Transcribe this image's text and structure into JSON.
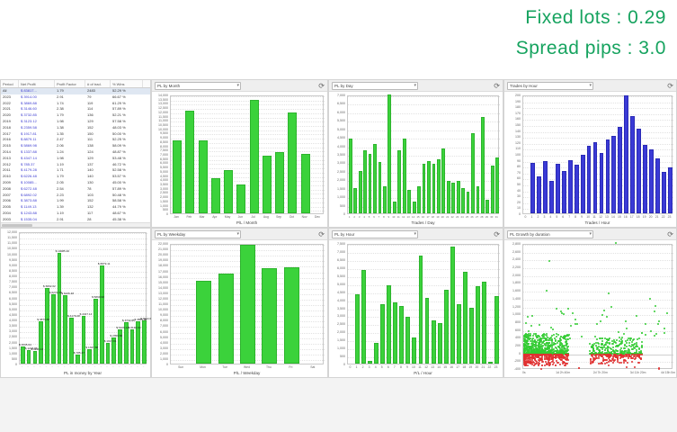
{
  "header": {
    "fixed_lots": "Fixed lots : 0.29",
    "spread_pips": "Spread pips : 3.0",
    "accent_color": "#16a35f"
  },
  "table": {
    "columns": [
      "Period",
      "Net Profit",
      "Profit Factor",
      "# of trad.",
      "% Wins"
    ],
    "rows": [
      [
        "All",
        "$ 83817...",
        "1.79",
        "2483",
        "52.29 %"
      ],
      [
        "2023",
        "$ 3914.00",
        "2.91",
        "79",
        "66.67 %"
      ],
      [
        "2022",
        "$ 3869.88",
        "1.74",
        "119",
        "61.29 %"
      ],
      [
        "2021",
        "$ 3146.60",
        "2.38",
        "114",
        "57.89 %"
      ],
      [
        "2020",
        "$ 3732.85",
        "1.79",
        "136",
        "52.21 %"
      ],
      [
        "2019",
        "$ 3123.12",
        "1.98",
        "129",
        "57.58 %"
      ],
      [
        "2018",
        "$ 2359.58",
        "1.38",
        "152",
        "48.03 %"
      ],
      [
        "2017",
        "$ 1917.81",
        "1.35",
        "150",
        "50.00 %"
      ],
      [
        "2016",
        "$ 8879.11",
        "2.47",
        "111",
        "52.25 %"
      ],
      [
        "2015",
        "$ 5869.98",
        "2.06",
        "138",
        "58.09 %"
      ],
      [
        "2014",
        "$ 1337.88",
        "1.24",
        "124",
        "48.87 %"
      ],
      [
        "2013",
        "$ 4347.14",
        "1.98",
        "129",
        "53.48 %"
      ],
      [
        "2012",
        "$ 785.37",
        "1.19",
        "137",
        "46.72 %"
      ],
      [
        "2011",
        "$ 4179.28",
        "1.71",
        "140",
        "52.58 %"
      ],
      [
        "2010",
        "$ 6226.48",
        "1.79",
        "140",
        "53.57 %"
      ],
      [
        "2009",
        "$ 10085...",
        "2.05",
        "130",
        "45.00 %"
      ],
      [
        "2008",
        "$ 6272.48",
        "2.54",
        "78",
        "57.89 %"
      ],
      [
        "2007",
        "$ 6892.02",
        "2.23",
        "103",
        "50.48 %"
      ],
      [
        "2006",
        "$ 3873.88",
        "1.99",
        "152",
        "58.58 %"
      ],
      [
        "2005",
        "$ 1149.13",
        "1.39",
        "132",
        "44.79 %"
      ],
      [
        "2004",
        "$ 1243.88",
        "1.19",
        "117",
        "48.67 %"
      ],
      [
        "2003",
        "$ 1535.04",
        "2.91",
        "28",
        "45.38 %"
      ]
    ]
  },
  "icons": {
    "refresh": "⟳",
    "chevron_down": "▾"
  },
  "colors": {
    "bar_green": "#3bd23b",
    "bar_green_border": "#2db42d",
    "bar_blue": "#3a3ad6",
    "bar_blue_border": "#2a2ab6",
    "scatter_win": "#33cc33",
    "scatter_loss": "#e03131"
  },
  "chart_data": [
    {
      "id": "pl_by_month",
      "type": "bar",
      "panel_label": "PL by Month",
      "xlabel": "P/L / Month",
      "categories": [
        "Jan",
        "Feb",
        "Mar",
        "Apr",
        "May",
        "Jun",
        "Jul",
        "Aug",
        "Sep",
        "Oct",
        "Nov",
        "Dec"
      ],
      "values": [
        8600,
        12100,
        8600,
        4150,
        5050,
        3450,
        13350,
        6750,
        7250,
        11850,
        7050,
        0
      ],
      "ylim": [
        0,
        14000
      ],
      "ytick": 500,
      "color": "green",
      "grid": true,
      "legend": "none"
    },
    {
      "id": "pl_by_day",
      "type": "bar",
      "panel_label": "PL by Day",
      "xlabel": "Trades / Day",
      "categories": [
        "1",
        "2",
        "3",
        "4",
        "5",
        "6",
        "7",
        "8",
        "9",
        "10",
        "11",
        "12",
        "13",
        "14",
        "15",
        "16",
        "17",
        "18",
        "19",
        "20",
        "21",
        "22",
        "23",
        "24",
        "25",
        "26",
        "27",
        "28",
        "29",
        "30",
        "31"
      ],
      "values": [
        4400,
        1500,
        2500,
        3700,
        3500,
        4100,
        3000,
        1600,
        7000,
        700,
        3700,
        4400,
        1400,
        700,
        1600,
        2900,
        3100,
        2900,
        3200,
        3800,
        1900,
        1800,
        1900,
        1500,
        1300,
        4700,
        1600,
        5700,
        800,
        2800,
        3300
      ],
      "ylim": [
        0,
        7000
      ],
      "ytick": 500,
      "color": "green",
      "grid": true,
      "legend": "none"
    },
    {
      "id": "trades_by_hour",
      "type": "bar",
      "panel_label": "Trades by Hour",
      "xlabel": "Trades / Hour",
      "categories": [
        "0",
        "1",
        "2",
        "3",
        "4",
        "5",
        "6",
        "7",
        "8",
        "9",
        "10",
        "11",
        "12",
        "13",
        "14",
        "15",
        "16",
        "17",
        "18",
        "19",
        "20",
        "21",
        "22",
        "23"
      ],
      "values": [
        0,
        85,
        62,
        88,
        55,
        84,
        72,
        90,
        82,
        98,
        113,
        120,
        102,
        125,
        130,
        145,
        198,
        163,
        142,
        115,
        108,
        93,
        70,
        78
      ],
      "ylim": [
        0,
        200
      ],
      "ytick": 10,
      "color": "blue",
      "grid": true,
      "legend": "none"
    },
    {
      "id": "pl_in_money_by_year",
      "type": "bar",
      "panel_label": "",
      "xlabel": "PL in money by Year",
      "categories": [
        "2003",
        "2004",
        "2005",
        "2006",
        "2007",
        "2008",
        "2009",
        "2010",
        "2011",
        "2012",
        "2013",
        "2014",
        "2015",
        "2016",
        "2017",
        "2018",
        "2019",
        "2020",
        "2021",
        "2022",
        "2023"
      ],
      "values": [
        1535.04,
        1243.88,
        1149.13,
        3873.88,
        6892.02,
        6272.48,
        10085.4,
        6226.48,
        4179.28,
        785.37,
        4347.14,
        1337.88,
        5869.98,
        8879.11,
        1917.81,
        2359.58,
        3123.12,
        3732.85,
        3146.6,
        3869.88,
        3914.0
      ],
      "ylim": [
        0,
        12000
      ],
      "ytick": 500,
      "color": "green",
      "grid": true,
      "legend": "none",
      "data_labels": true,
      "data_label_prefix": "$ ",
      "hide_cat_labels": true
    },
    {
      "id": "pl_by_weekday",
      "type": "bar",
      "panel_label": "PL by Weekday",
      "xlabel": "P/L / Weekday",
      "categories": [
        "Sun",
        "Mon",
        "Tue",
        "Wed",
        "Thu",
        "Fri",
        "Sat"
      ],
      "values": [
        0,
        15100,
        16400,
        21600,
        17400,
        17600,
        0
      ],
      "ylim": [
        0,
        22000
      ],
      "ytick": 1000,
      "color": "green",
      "grid": true,
      "legend": "none"
    },
    {
      "id": "pl_by_hour",
      "type": "bar",
      "panel_label": "PL by Hour",
      "xlabel": "P/L / Hour",
      "categories": [
        "0",
        "1",
        "2",
        "3",
        "4",
        "5",
        "6",
        "7",
        "8",
        "9",
        "10",
        "11",
        "12",
        "13",
        "14",
        "15",
        "16",
        "17",
        "18",
        "19",
        "20",
        "21",
        "22",
        "23"
      ],
      "values": [
        0,
        4300,
        5800,
        150,
        1300,
        3700,
        4900,
        3800,
        3600,
        2900,
        1600,
        6700,
        4100,
        2700,
        2500,
        4600,
        7300,
        3700,
        5700,
        3500,
        4800,
        5100,
        50,
        4200
      ],
      "ylim": [
        0,
        7500
      ],
      "ytick": 500,
      "color": "green",
      "grid": true,
      "legend": "none"
    },
    {
      "id": "pl_growth_by_duration",
      "type": "scatter",
      "panel_label": "PL Growth by duration",
      "xlabel": "",
      "ylim": [
        -400,
        2800
      ],
      "ytick": 200,
      "grid": true,
      "legend": "none",
      "xticks": [
        "0s",
        "1d 2h 40m",
        "2d 7h 20m",
        "3d 11h 20m",
        "4d 15h 0m"
      ],
      "xtick_pos": [
        0.0,
        0.27,
        0.52,
        0.77,
        0.97
      ],
      "seed": 42,
      "clusters": [
        {
          "x": [
            0.005,
            0.3
          ],
          "xpow": 1.5,
          "green": {
            "count": 750,
            "y": [
              4,
              520
            ],
            "ypow": 2.6
          },
          "red": {
            "count": 380,
            "y": [
              -8,
              -300
            ],
            "ypow": 2.4
          }
        },
        {
          "x": [
            0.44,
            0.79
          ],
          "xpow": 1.0,
          "green": {
            "count": 300,
            "y": [
              4,
              430
            ],
            "ypow": 2.4
          },
          "red": {
            "count": 170,
            "y": [
              -8,
              -250
            ],
            "ypow": 2.2
          }
        },
        {
          "x": [
            0.02,
            0.99
          ],
          "xpow": 1.0,
          "green": {
            "count": 45,
            "y": [
              400,
              1250
            ],
            "ypow": 1.6
          },
          "red": {
            "count": 8,
            "y": [
              -260,
              -390
            ],
            "ypow": 1.0
          }
        }
      ],
      "outliers_green": [
        [
          0.175,
          2380
        ],
        [
          0.615,
          2850
        ],
        [
          0.155,
          1620
        ],
        [
          0.57,
          1560
        ],
        [
          0.845,
          1430
        ],
        [
          0.955,
          1050
        ],
        [
          0.88,
          1230
        ],
        [
          0.755,
          980
        ],
        [
          0.02,
          800
        ],
        [
          0.3,
          1170
        ],
        [
          0.25,
          1090
        ]
      ]
    }
  ]
}
